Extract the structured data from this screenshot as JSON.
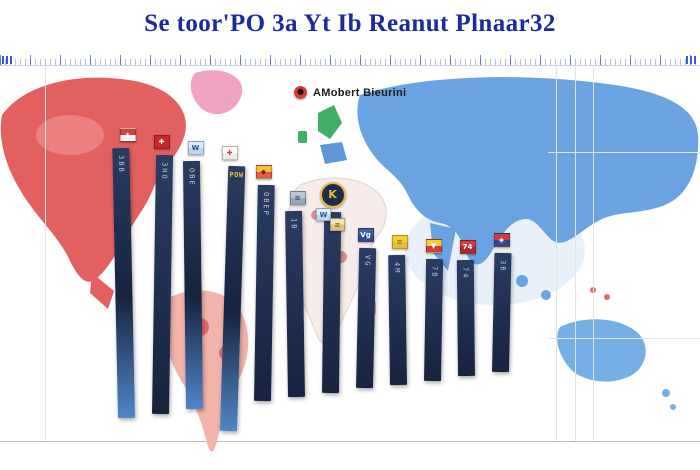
{
  "title": "Se toor'PO 3a Yt Ib Reanut Plnaar32",
  "legend": {
    "icon": "red-dot-logo",
    "text": "AMobert Bieurini"
  },
  "colors": {
    "title": "#1b2aa0",
    "bar_top": "#2a3c63",
    "bar": "#17233f",
    "bar_light": "#4e86c6",
    "accent_red": "#c62828"
  },
  "chart_data": {
    "type": "bar",
    "title": "Se toor'PO 3a Yt Ib Reanut Plnaar32",
    "categories": [
      "3BB",
      "3HO",
      "OBE",
      "POW",
      "OBEP",
      "1B",
      "KP",
      "VG",
      "4M",
      "7B",
      "74",
      "3B"
    ],
    "values": [
      100,
      96,
      92,
      98,
      80,
      69,
      67,
      52,
      48,
      45,
      43,
      44
    ],
    "xlabel": "",
    "ylabel": "",
    "ylim": [
      0,
      100
    ],
    "grid": "faint vertical lines right side",
    "legend_position": "top-center",
    "background": "world map"
  },
  "bars": [
    {
      "label": "3BB",
      "light_bottom": true,
      "flag": {
        "c1": "#d23c3c",
        "c2": "#f2f2f2",
        "glyph": "✶",
        "fg": "#ffffff"
      }
    },
    {
      "label": "3HO",
      "flag": {
        "c1": "#c62828",
        "c2": "#c62828",
        "glyph": "✚",
        "fg": "#ffffff"
      }
    },
    {
      "label": "OBE",
      "light_bottom": true,
      "flag": {
        "c1": "#dfeeff",
        "c2": "#bcd6f5",
        "glyph": "W",
        "fg": "#2b4a8b"
      }
    },
    {
      "label": "POW",
      "horizontal": true,
      "label_color": "#f2c23a",
      "light_bottom": true,
      "flag": {
        "c1": "#ffffff",
        "c2": "#eeeeee",
        "glyph": "✚",
        "fg": "#d23c3c"
      }
    },
    {
      "label": "OBEP",
      "flag": {
        "c1": "#f4c430",
        "c2": "#e05a4e",
        "glyph": "◆",
        "fg": "#7a231b"
      }
    },
    {
      "label": "1B",
      "flag": {
        "c1": "#b9c6d6",
        "c2": "#93a7be",
        "glyph": "≋",
        "fg": "#3a4a5e"
      }
    },
    {
      "label": "KP",
      "flag": {
        "round": true,
        "c1": "#1d2c4e",
        "glyph": "K",
        "fg": "#e8b93c"
      }
    },
    {
      "label": "VG",
      "flag": {
        "c1": "#3e5fa8",
        "c2": "#2d4a8e",
        "glyph": "Vg",
        "fg": "#ffffff"
      }
    },
    {
      "label": "4M",
      "flag": {
        "c1": "#f5d034",
        "c2": "#e8b93c",
        "glyph": "≡",
        "fg": "#8a6d1a"
      }
    },
    {
      "label": "7B",
      "flag": {
        "c1": "#f5d034",
        "c2": "#d23c3c",
        "glyph": "▼",
        "fg": "#ffffff"
      }
    },
    {
      "label": "74",
      "flag": {
        "c1": "#d23c3c",
        "c2": "#a82a2a",
        "glyph": "74",
        "fg": "#ffffff"
      }
    },
    {
      "label": "3B",
      "flag": {
        "c1": "#d23c3c",
        "c2": "#2d4a8e",
        "glyph": "◈",
        "fg": "#ffffff"
      }
    }
  ],
  "extra_flags": [
    {
      "glyph": "W",
      "c1": "#dfeeff",
      "c2": "#bcd6f5",
      "fg": "#2b4a8b"
    },
    {
      "glyph": "≡",
      "c1": "#f4e3b2",
      "c2": "#e0c27a",
      "fg": "#7a5a1a"
    }
  ],
  "map_colors": {
    "north_america": "#e36060",
    "north_america_light": "#f08d8d",
    "greenland": "#efa3c0",
    "south_america": "#f2b3ab",
    "south_america_patch": "#e26b6b",
    "europe_green": "#3fae68",
    "europe_blue": "#5e97d8",
    "africa": "#f8ecea",
    "africa_patch": "#e08f8f",
    "asia": "#6aa3e2",
    "asia_light": "#bdd8f2",
    "australia": "#74b0e6",
    "ocean": "#ffffff"
  }
}
